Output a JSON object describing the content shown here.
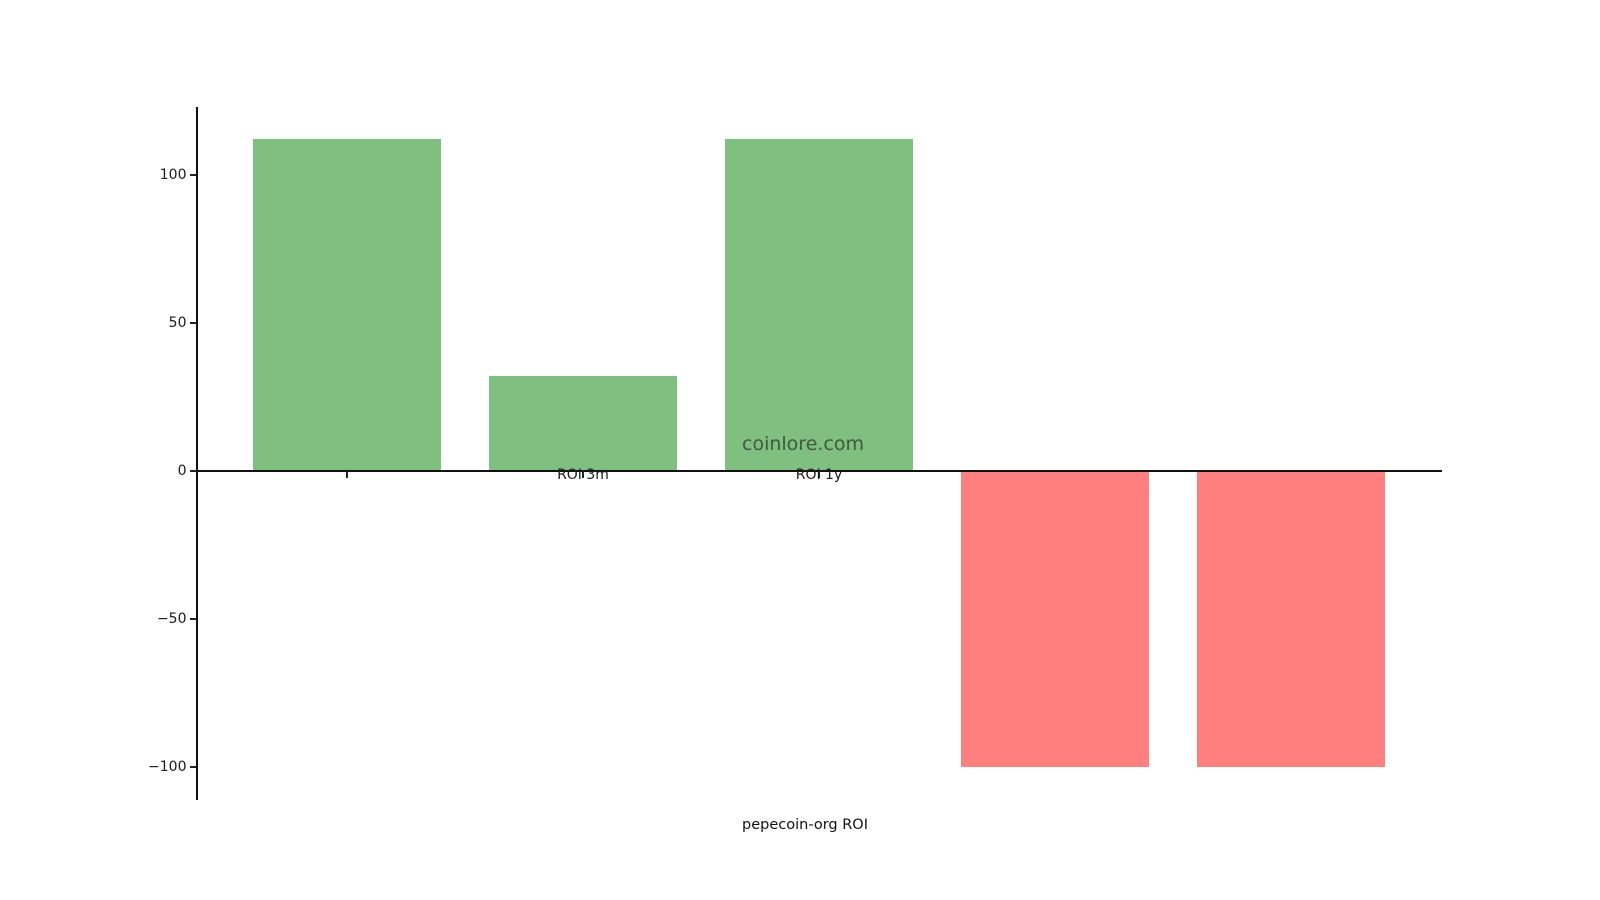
{
  "chart_data": {
    "type": "bar",
    "xlabel": "pepecoin-org ROI",
    "ylabel": "",
    "watermark": "coinlore.com",
    "categories": [
      "",
      "ROI 3m",
      "ROI 1y",
      "",
      ""
    ],
    "values": [
      112,
      32,
      112,
      -100,
      -100
    ],
    "bar_colors": [
      "#7fbf7f",
      "#7fbf7f",
      "#7fbf7f",
      "#ff7f7f",
      "#ff7f7f"
    ],
    "positive_color": "#7fbf7f",
    "negative_color": "#ff7f7f",
    "ylim": [
      -111,
      123
    ],
    "yticks": [
      {
        "value": 100,
        "label": "100"
      },
      {
        "value": 50,
        "label": "50"
      },
      {
        "value": 0,
        "label": "0"
      },
      {
        "value": -50,
        "label": "−50"
      },
      {
        "value": -100,
        "label": "−100"
      }
    ],
    "xticks": [
      {
        "bar_index": 0,
        "label": ""
      },
      {
        "bar_index": 1,
        "label": "ROI 3m"
      },
      {
        "bar_index": 2,
        "label": "ROI 1y"
      }
    ],
    "grid": false,
    "legend": null
  }
}
